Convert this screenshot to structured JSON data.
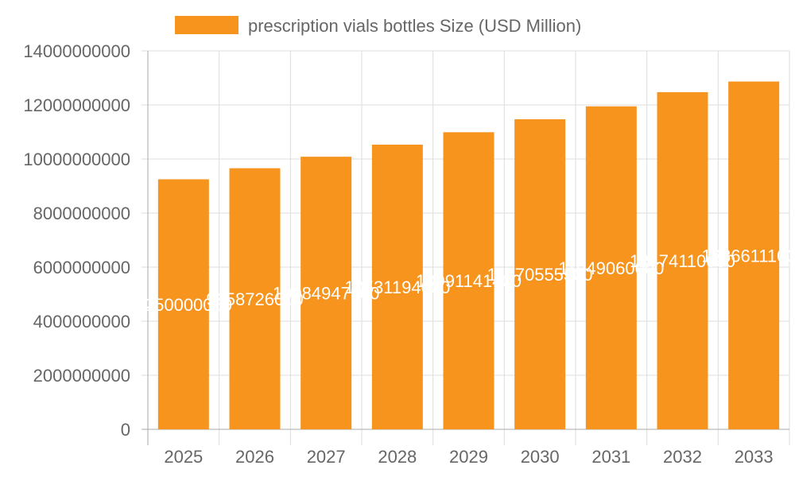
{
  "chart_data": {
    "type": "bar",
    "title": "",
    "xlabel": "",
    "ylabel": "",
    "categories": [
      "2025",
      "2026",
      "2027",
      "2028",
      "2029",
      "2030",
      "2031",
      "2032",
      "2033"
    ],
    "series": [
      {
        "name": "prescription vials bottles Size (USD Million)",
        "values": [
          9250000000,
          9658726000,
          10084947900,
          10531194000,
          10991141400,
          11470555500,
          11949060000,
          12474110000,
          12866111000
        ]
      }
    ],
    "ylim": [
      0,
      14000000000
    ],
    "yticks": [
      0,
      2000000000,
      4000000000,
      6000000000,
      8000000000,
      10000000000,
      12000000000,
      14000000000
    ],
    "grid": true,
    "legend": "top",
    "colors": {
      "bar": "#f7941e",
      "grid": "#dddddd",
      "axis": "#aaaaaa",
      "text": "#666666",
      "data_label": "#ffffff"
    }
  }
}
